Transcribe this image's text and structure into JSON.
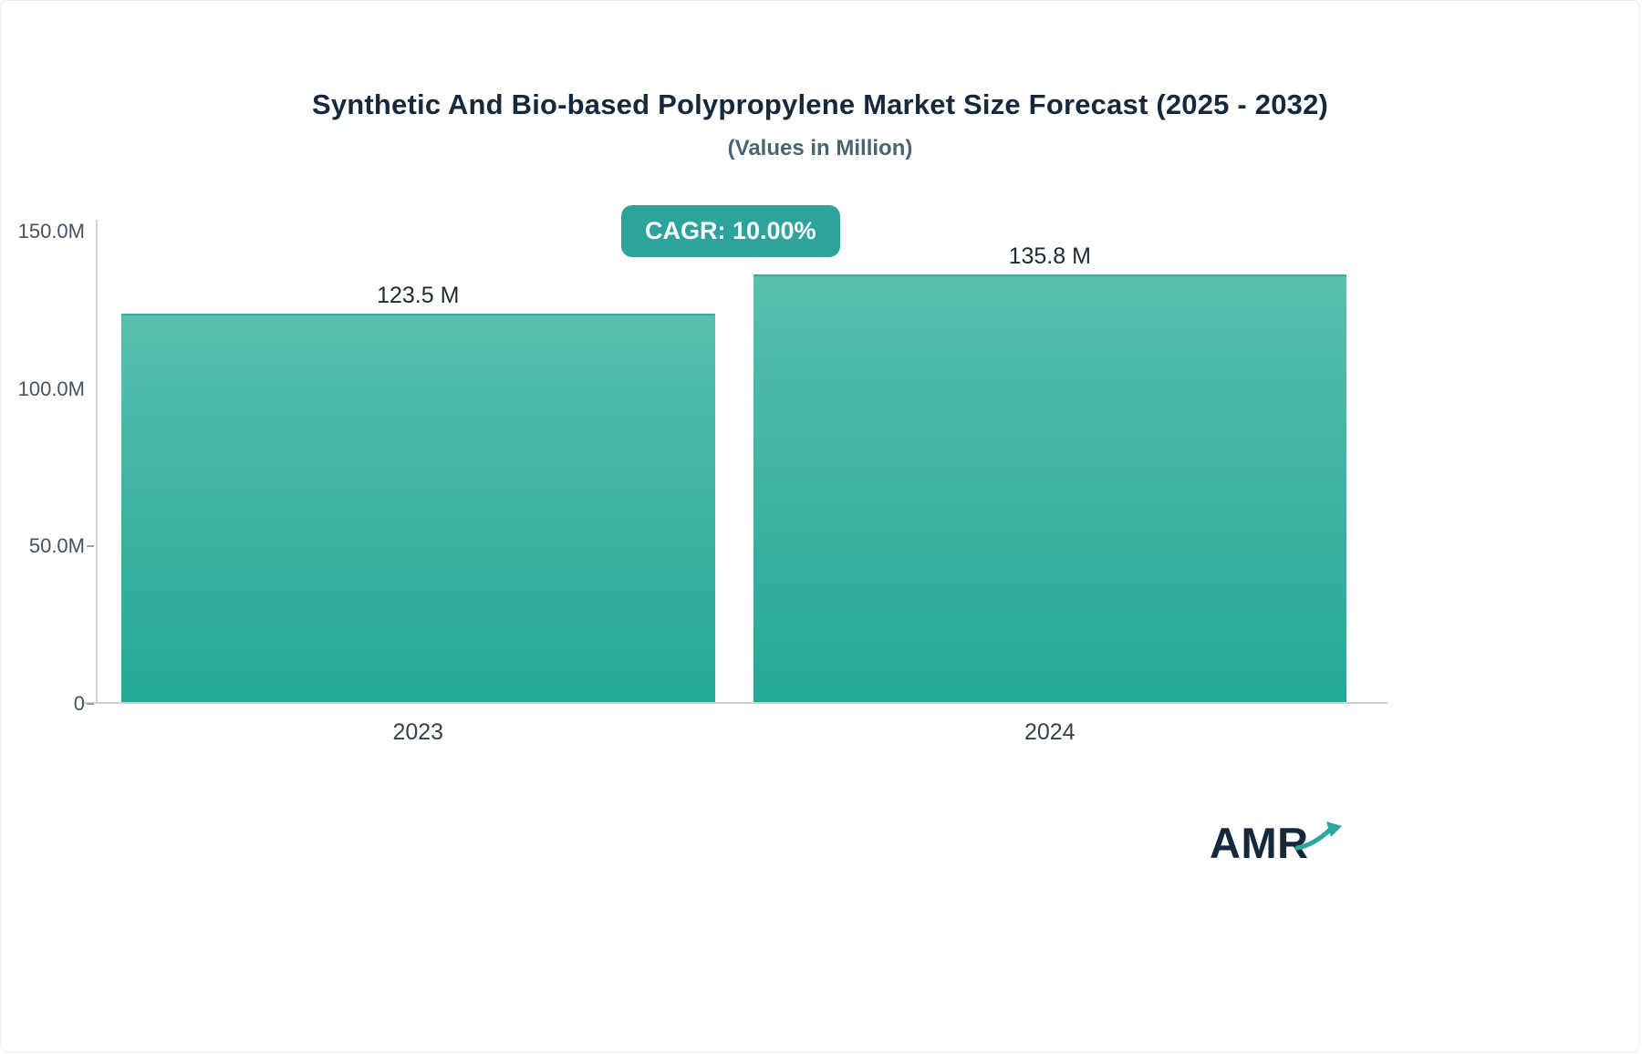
{
  "header": {
    "title": "Synthetic And Bio-based Polypropylene Market Size Forecast (2025 - 2032)",
    "subtitle": "(Values in Million)"
  },
  "badge": {
    "label": "CAGR: 10.00%",
    "bg_color": "#2ca49c"
  },
  "chart_data": {
    "type": "bar",
    "categories": [
      "2023",
      "2024"
    ],
    "values": [
      123.5,
      135.8
    ],
    "value_labels": [
      "123.5 M",
      "135.8 M"
    ],
    "title": "Synthetic And Bio-based Polypropylene Market Size Forecast (2025 - 2032)",
    "subtitle": "(Values in Million)",
    "xlabel": "",
    "ylabel": "",
    "ylim": [
      0,
      150
    ],
    "yticks": [
      {
        "label": "150.0M",
        "value": 150,
        "dash": false
      },
      {
        "label": "100.0M",
        "value": 100,
        "dash": false
      },
      {
        "label": "50.0M",
        "value": 50,
        "dash": true
      },
      {
        "label": "0",
        "value": 0,
        "dash": true
      }
    ],
    "grid": false,
    "legend": false,
    "bar_gradient_top": "#58bfb0",
    "bar_gradient_bottom": "#25a897"
  },
  "logo": {
    "text": "AMR",
    "arrow_color": "#2ba89b"
  }
}
